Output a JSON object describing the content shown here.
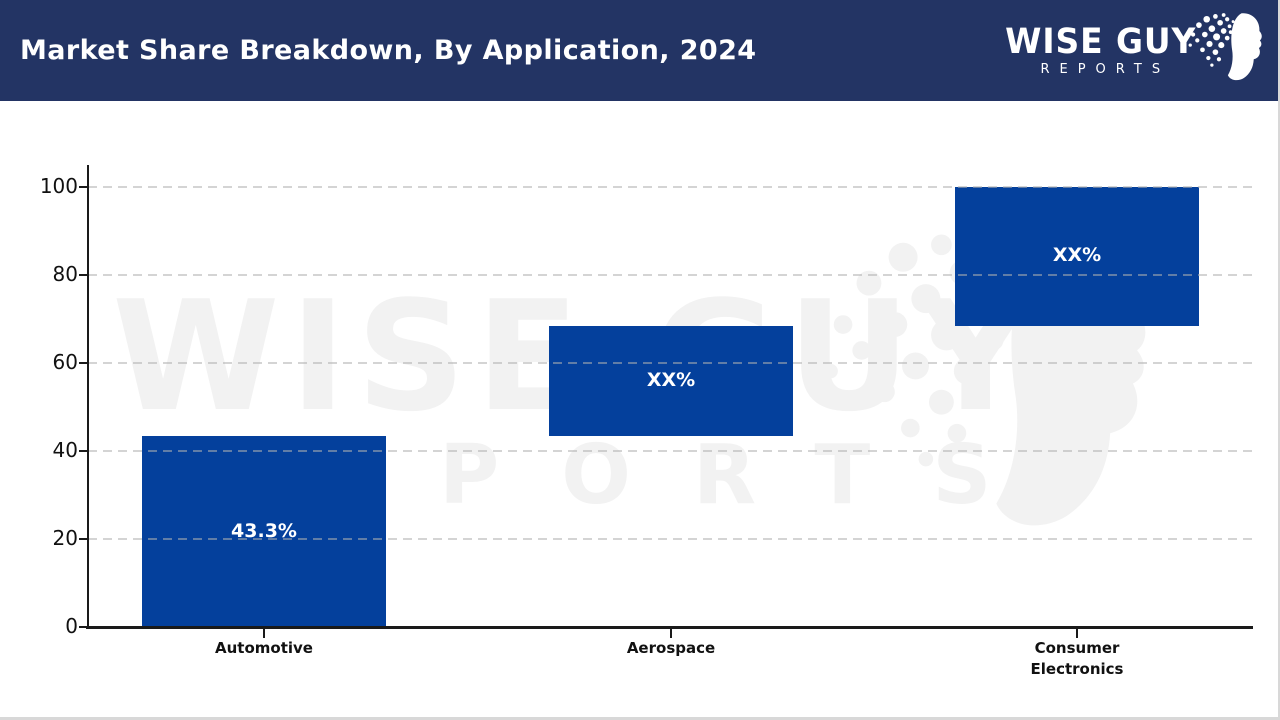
{
  "header": {
    "title": "Market Share Breakdown, By Application, 2024",
    "logo": {
      "wordmark": "WISE GUY",
      "subtext": "REPORTS"
    }
  },
  "watermark": {
    "wordmark": "WISE GUY",
    "subtext": "REPORTS"
  },
  "chart_data": {
    "type": "bar",
    "variant": "waterfall",
    "title": "Market Share Breakdown, By Application, 2024",
    "categories": [
      "Automotive",
      "Aerospace",
      "Consumer Electronics"
    ],
    "segments": [
      {
        "category": "Automotive",
        "start": 0,
        "end": 43.3,
        "label": "43.3%"
      },
      {
        "category": "Aerospace",
        "start": 43.3,
        "end": 68.5,
        "label": "XX%"
      },
      {
        "category": "Consumer Electronics",
        "start": 68.5,
        "end": 100,
        "label": "XX%"
      }
    ],
    "yticks": [
      0,
      20,
      40,
      60,
      80,
      100
    ],
    "ylim": [
      0,
      105
    ],
    "xlabel": "",
    "ylabel": "",
    "grid": "dashed-horizontal",
    "legend": "none",
    "colors": {
      "bar": "#04409c",
      "header_bg": "#233464",
      "grid": "#d9d9d9",
      "axis": "#1a1a1a",
      "label_on_bar": "#ffffff",
      "watermark": "#f2f2f2"
    }
  }
}
